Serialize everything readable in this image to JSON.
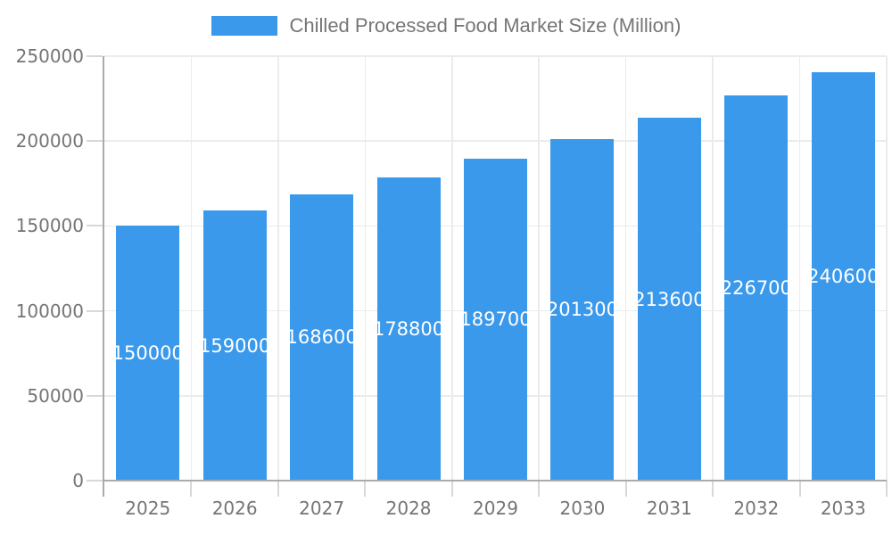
{
  "chart_data": {
    "type": "bar",
    "series_name": "Chilled Processed Food Market Size (Million)",
    "categories": [
      "2025",
      "2026",
      "2027",
      "2028",
      "2029",
      "2030",
      "2031",
      "2032",
      "2033"
    ],
    "values": [
      150000,
      159000,
      168600,
      178800,
      189700,
      201300,
      213600,
      226700,
      240600
    ],
    "ylim": [
      0,
      250000
    ],
    "yticks": [
      0,
      50000,
      100000,
      150000,
      200000,
      250000
    ],
    "grid": true,
    "legend_position": "top",
    "bar_color": "#3B99EC",
    "bar_label_color": "#FFFFFF"
  },
  "colors": {
    "axis": "#ABABAB",
    "gridline": "#EBEBEB",
    "tick": "#D8D8D8",
    "text": "#757575",
    "background": "#FFFFFF"
  }
}
